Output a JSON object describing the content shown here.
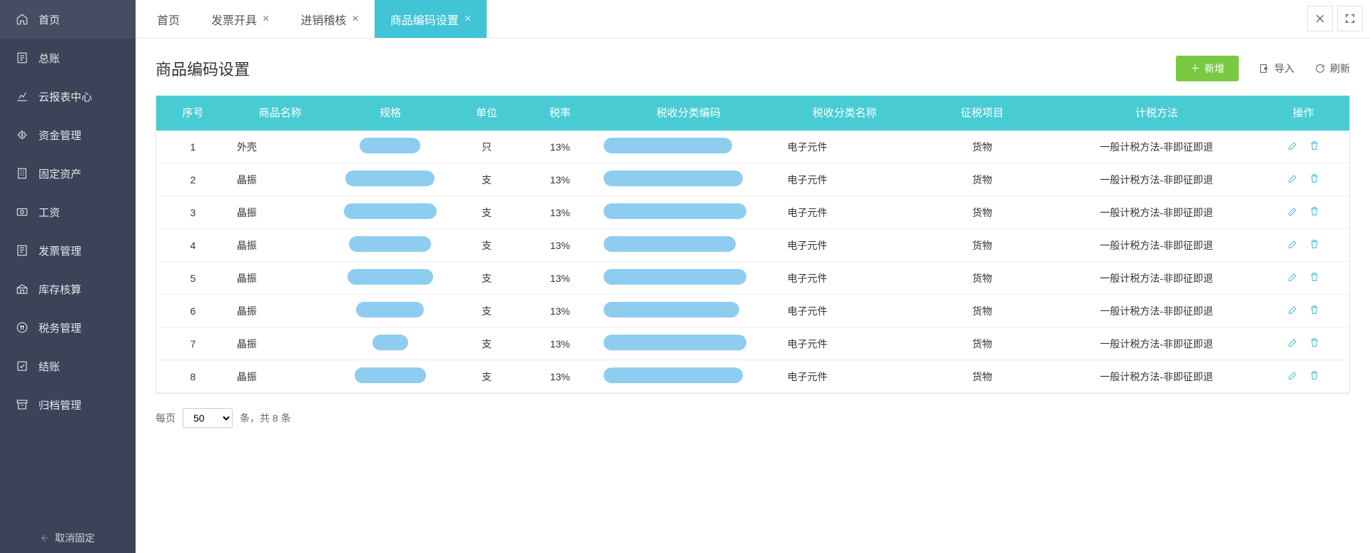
{
  "colors": {
    "sidebar_bg": "#3b4358",
    "accent_teal": "#49cbd4",
    "accent_tab": "#40c4d6",
    "primary_green": "#7ac943",
    "redact_blue": "#8ecdf0"
  },
  "sidebar": {
    "items": [
      {
        "icon": "home",
        "label": "首页"
      },
      {
        "icon": "ledger",
        "label": "总账"
      },
      {
        "icon": "chart",
        "label": "云报表中心"
      },
      {
        "icon": "fund",
        "label": "资金管理"
      },
      {
        "icon": "building",
        "label": "固定资产"
      },
      {
        "icon": "wage",
        "label": "工资"
      },
      {
        "icon": "invoice",
        "label": "发票管理"
      },
      {
        "icon": "stock",
        "label": "库存核算"
      },
      {
        "icon": "tax",
        "label": "税务管理"
      },
      {
        "icon": "close-book",
        "label": "结账"
      },
      {
        "icon": "archive",
        "label": "归档管理"
      }
    ],
    "footer": "取消固定"
  },
  "tabs": {
    "items": [
      {
        "label": "首页",
        "closable": false,
        "active": false
      },
      {
        "label": "发票开具",
        "closable": true,
        "active": false
      },
      {
        "label": "进销稽核",
        "closable": true,
        "active": false
      },
      {
        "label": "商品编码设置",
        "closable": true,
        "active": true
      }
    ]
  },
  "page": {
    "title": "商品编码设置",
    "add_btn": "新增",
    "import_btn": "导入",
    "refresh_btn": "刷新"
  },
  "table": {
    "columns": [
      {
        "key": "seq",
        "label": "序号",
        "class": "col-seq"
      },
      {
        "key": "name",
        "label": "商品名称",
        "class": "col-name"
      },
      {
        "key": "spec",
        "label": "规格",
        "class": "col-spec"
      },
      {
        "key": "unit",
        "label": "单位",
        "class": "col-unit"
      },
      {
        "key": "rate",
        "label": "税率",
        "class": "col-rate"
      },
      {
        "key": "code",
        "label": "税收分类编码",
        "class": "col-code"
      },
      {
        "key": "cat",
        "label": "税收分类名称",
        "class": "col-cat"
      },
      {
        "key": "proj",
        "label": "征税项目",
        "class": "col-proj"
      },
      {
        "key": "meth",
        "label": "计税方法",
        "class": "col-meth"
      },
      {
        "key": "ops",
        "label": "操作",
        "class": "col-ops"
      }
    ],
    "rows": [
      {
        "seq": "1",
        "name": "外壳",
        "spec_redact_w": 85,
        "unit": "只",
        "rate": "13%",
        "code_redact_w": 180,
        "cat": "电子元件",
        "proj": "货物",
        "meth": "一般计税方法-非即征即退"
      },
      {
        "seq": "2",
        "name": "晶振",
        "spec_redact_w": 125,
        "unit": "支",
        "rate": "13%",
        "code_redact_w": 195,
        "cat": "电子元件",
        "proj": "货物",
        "meth": "一般计税方法-非即征即退"
      },
      {
        "seq": "3",
        "name": "晶振",
        "spec_redact_w": 130,
        "unit": "支",
        "rate": "13%",
        "code_redact_w": 200,
        "cat": "电子元件",
        "proj": "货物",
        "meth": "一般计税方法-非即征即退"
      },
      {
        "seq": "4",
        "name": "晶振",
        "spec_redact_w": 115,
        "unit": "支",
        "rate": "13%",
        "code_redact_w": 185,
        "cat": "电子元件",
        "proj": "货物",
        "meth": "一般计税方法-非即征即退"
      },
      {
        "seq": "5",
        "name": "晶振",
        "spec_redact_w": 120,
        "unit": "支",
        "rate": "13%",
        "code_redact_w": 200,
        "cat": "电子元件",
        "proj": "货物",
        "meth": "一般计税方法-非即征即退"
      },
      {
        "seq": "6",
        "name": "晶振",
        "spec_redact_w": 95,
        "unit": "支",
        "rate": "13%",
        "code_redact_w": 190,
        "cat": "电子元件",
        "proj": "货物",
        "meth": "一般计税方法-非即征即退"
      },
      {
        "seq": "7",
        "name": "晶振",
        "spec_redact_w": 50,
        "unit": "支",
        "rate": "13%",
        "code_redact_w": 200,
        "cat": "电子元件",
        "proj": "货物",
        "meth": "一般计税方法-非即征即退"
      },
      {
        "seq": "8",
        "name": "晶振",
        "spec_redact_w": 100,
        "unit": "支",
        "rate": "13%",
        "code_redact_w": 195,
        "cat": "电子元件",
        "proj": "货物",
        "meth": "一般计税方法-非即征即退"
      }
    ]
  },
  "pager": {
    "per_page_label": "每页",
    "per_page_value": "50",
    "suffix": "条，共 8 条"
  }
}
